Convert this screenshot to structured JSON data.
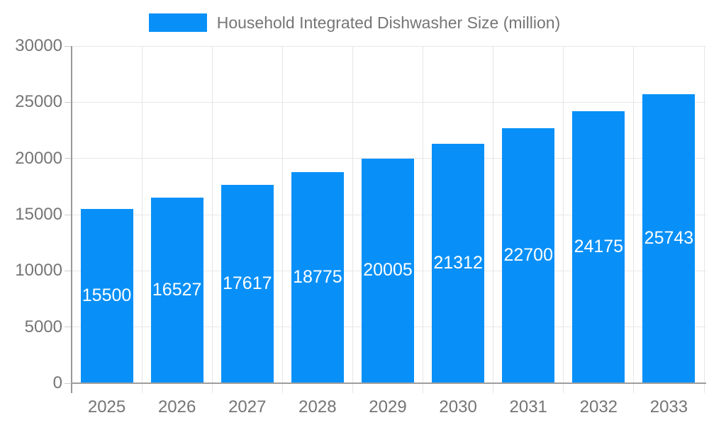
{
  "legend": {
    "label": "Household Integrated Dishwasher Size (million)"
  },
  "chart_data": {
    "type": "bar",
    "title": "Household Integrated Dishwasher Size (million)",
    "xlabel": "",
    "ylabel": "",
    "categories": [
      "2025",
      "2026",
      "2027",
      "2028",
      "2029",
      "2030",
      "2031",
      "2032",
      "2033"
    ],
    "values": [
      15500,
      16527,
      17617,
      18775,
      20005,
      21312,
      22700,
      24175,
      25743
    ],
    "ylim": [
      0,
      30000
    ],
    "ytick_step": 5000,
    "ytick_labels": [
      "0",
      "5000",
      "10000",
      "15000",
      "20000",
      "25000",
      "30000"
    ],
    "grid": "on",
    "legend_position": "top",
    "bar_color": "#0890f8",
    "value_label_color": "#ffffff",
    "axis_text_color": "#757575",
    "grid_color": "#e6e6e6",
    "axis_line_color": "#999999"
  }
}
